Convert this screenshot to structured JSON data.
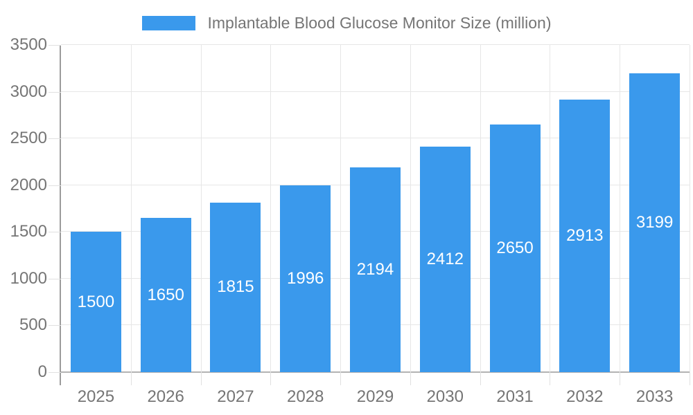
{
  "legend": {
    "label": "Implantable Blood Glucose Monitor Size (million)"
  },
  "chart_data": {
    "type": "bar",
    "title": "Implantable Blood Glucose Monitor Size (million)",
    "series_name": "Implantable Blood Glucose Monitor Size (million)",
    "categories": [
      "2025",
      "2026",
      "2027",
      "2028",
      "2029",
      "2030",
      "2031",
      "2032",
      "2033"
    ],
    "values": [
      1500,
      1650,
      1815,
      1996,
      2194,
      2412,
      2650,
      2913,
      3199
    ],
    "xlabel": "",
    "ylabel": "",
    "ylim": [
      0,
      3500
    ],
    "yticks": [
      0,
      500,
      1000,
      1500,
      2000,
      2500,
      3000,
      3500
    ],
    "grid": true,
    "legend_position": "top",
    "bar_color": "#3A99EC",
    "bar_label_color": "#FFFFFF",
    "axis_text_color": "#757575",
    "gridline_color": "#E6E6E6",
    "axis_line_color": "#9B9B9B"
  }
}
